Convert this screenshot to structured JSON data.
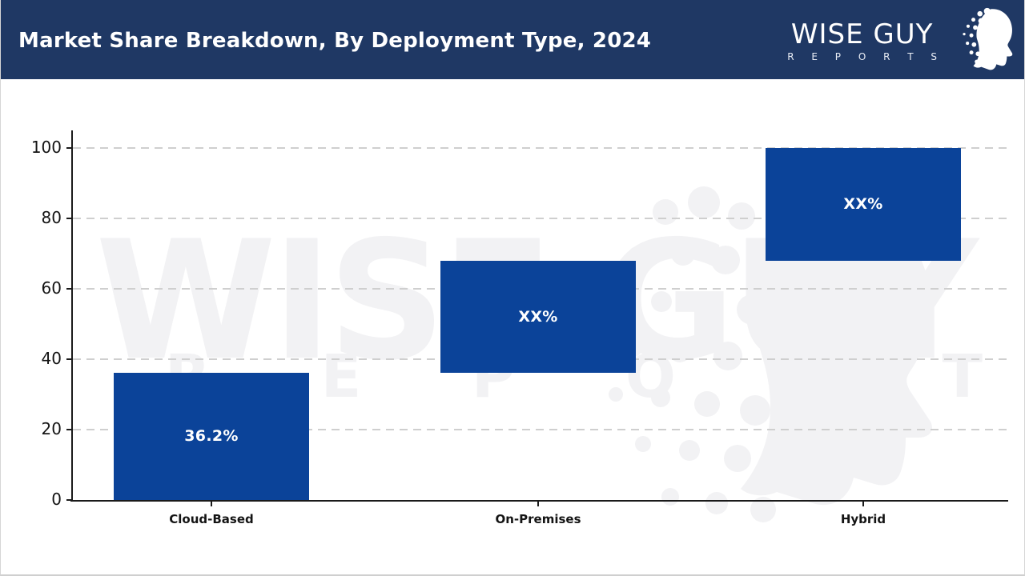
{
  "header": {
    "title": "Market Share Breakdown, By Deployment Type, 2024",
    "bg_color": "#1f3864",
    "logo": {
      "line1": "WISE GUY",
      "line2": "R E P O R T S"
    }
  },
  "watermark": {
    "line1": "WISE GUY",
    "line2": "R E P O R T S"
  },
  "chart_data": {
    "type": "bar",
    "variant": "floating-segment (waterfall-style market share breakdown)",
    "title": "Market Share Breakdown, By Deployment Type, 2024",
    "categories": [
      "Cloud-Based",
      "On-Premises",
      "Hybrid"
    ],
    "segments": [
      {
        "category": "Cloud-Based",
        "start": 0,
        "end": 36.2,
        "label": "36.2%"
      },
      {
        "category": "On-Premises",
        "start": 36.2,
        "end": 68,
        "label": "XX%"
      },
      {
        "category": "Hybrid",
        "start": 68,
        "end": 100,
        "label": "XX%"
      }
    ],
    "xlabel": "",
    "ylabel": "",
    "yticks": [
      0,
      20,
      40,
      60,
      80,
      100
    ],
    "ylim": [
      0,
      105
    ],
    "grid": "horizontal dashed",
    "legend": "none",
    "bar_color": "#0b4399",
    "bar_label_color": "#ffffff",
    "axis_color": "#1a1a1a",
    "grid_color": "#cfcfcf",
    "watermark_color": "#f2f2f4"
  }
}
